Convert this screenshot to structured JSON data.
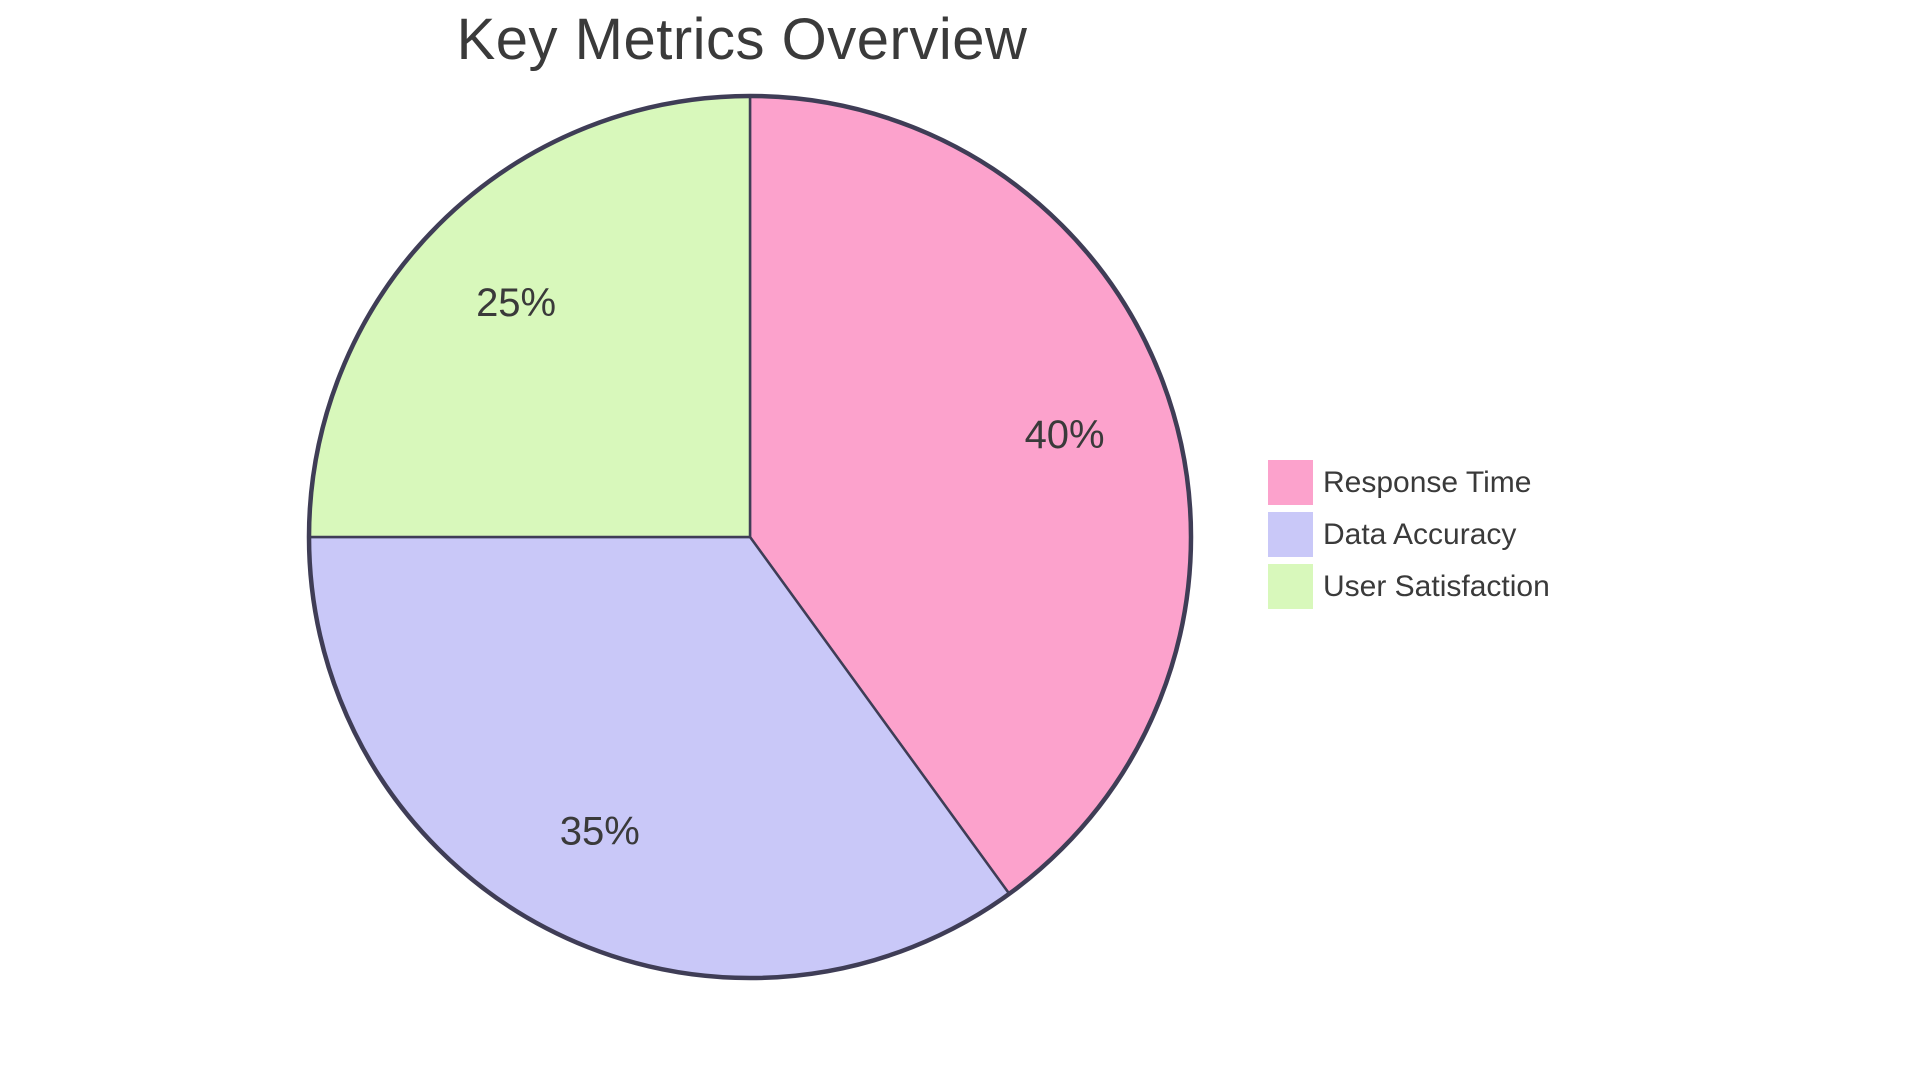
{
  "page": {
    "background_color": "#FFFFFF"
  },
  "chart_data": {
    "type": "pie",
    "title": "Key Metrics Overview",
    "categories": [
      "Response Time",
      "Data Accuracy",
      "User Satisfaction"
    ],
    "values": [
      40,
      35,
      25
    ],
    "unit": "%",
    "slice_labels": [
      "40%",
      "35%",
      "25%"
    ],
    "colors": [
      "#FCA2CC",
      "#C9C8F8",
      "#D8F8BB"
    ],
    "stroke_color": "#3F3D56",
    "text_color": "#3A3A3A",
    "start_angle_deg": 0,
    "direction": "clockwise",
    "label_radius_ratio": 0.75,
    "legend": {
      "position": "right",
      "entries": [
        "Response Time",
        "Data Accuracy",
        "User Satisfaction"
      ]
    }
  }
}
